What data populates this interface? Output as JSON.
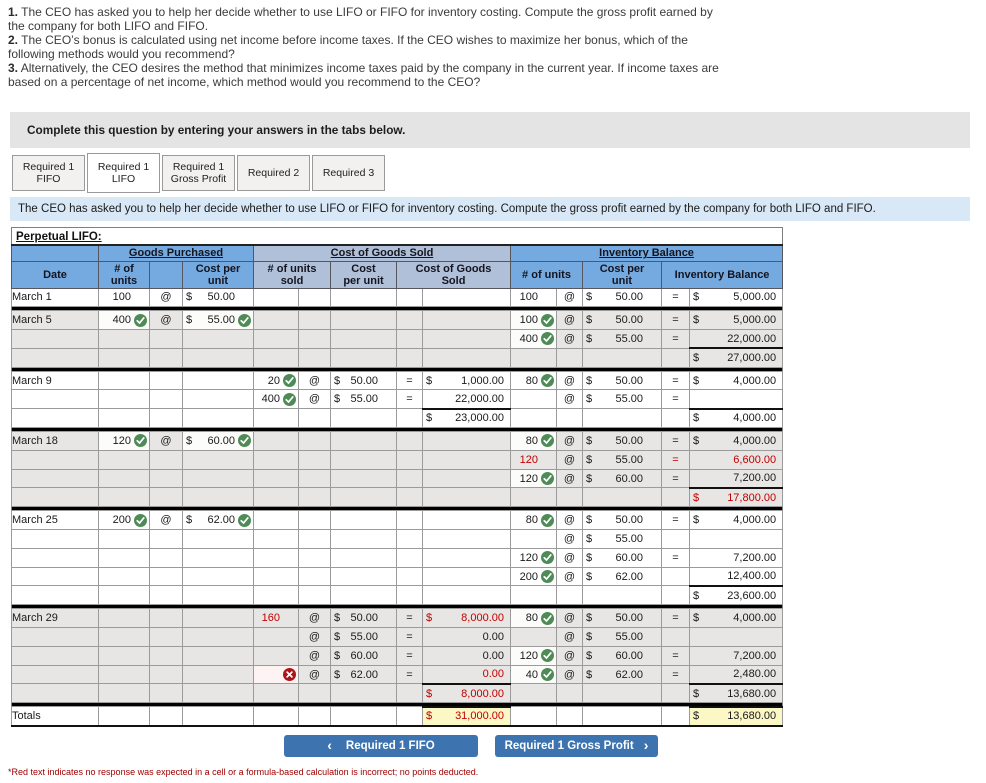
{
  "intro": {
    "items": [
      {
        "num": "1.",
        "text": " The CEO has asked you to help her decide whether to use LIFO or FIFO for inventory costing. Compute the gross profit earned by the company for both LIFO and FIFO."
      },
      {
        "num": "2.",
        "text": " The CEO’s bonus is calculated using net income before income taxes. If the CEO wishes to maximize her bonus, which of the following methods would you recommend?"
      },
      {
        "num": "3.",
        "text": " Alternatively, the CEO desires the method that minimizes income taxes paid by the company in the current year. If income taxes are based on a percentage of net income, which method would you recommend to the CEO?"
      }
    ]
  },
  "instruction": "Complete this question by entering your answers in the tabs below.",
  "tabs": [
    {
      "id": "required-1-fifo",
      "lines": [
        "Required 1",
        "FIFO"
      ],
      "active": false
    },
    {
      "id": "required-1-lifo",
      "lines": [
        "Required 1",
        "LIFO"
      ],
      "active": true
    },
    {
      "id": "required-1-gross-profit",
      "lines": [
        "Required 1",
        "Gross Profit"
      ],
      "active": false
    },
    {
      "id": "required-2",
      "lines": [
        "Required 2"
      ],
      "active": false
    },
    {
      "id": "required-3",
      "lines": [
        "Required 3"
      ],
      "active": false
    }
  ],
  "banner": "The CEO has asked you to help her decide whether to use LIFO or FIFO for inventory costing. Compute the gross profit earned by the company for both LIFO and FIFO.",
  "table": {
    "caption": "Perpetual LIFO:",
    "group_headers": [
      "Goods Purchased",
      "Cost of Goods Sold",
      "Inventory Balance"
    ],
    "col_headers": {
      "date": "Date",
      "gp_units": "# of\nunits",
      "gp_cost": "Cost per\nunit",
      "cs_units": "# of units\nsold",
      "cs_cost": "Cost\nper unit",
      "cs_total": "Cost of Goods\nSold",
      "inv_units": "# of units",
      "inv_cost": "Cost per\nunit",
      "inv_total": "Inventory Balance"
    },
    "icons": {
      "correct": "check-icon",
      "incorrect": "x-icon"
    },
    "colors": {
      "header_blue": "#74aadf",
      "header_gray_blue": "#b0c0d8",
      "row_gray": "#e7e6e4",
      "highlight_yellow": "#fbf8c6",
      "error_red": "#c00000",
      "check_green": "#4e8b57",
      "x_red": "#b11217",
      "button_blue": "#3d73ae"
    },
    "blocks": [
      {
        "shade": "white",
        "rows": [
          {
            "date": "March 1",
            "cells": {
              "gp_u": {
                "v": "100"
              },
              "gp_at": {
                "v": "@"
              },
              "gp_c": {
                "v": "50.00",
                "d": 1
              },
              "inv_u": {
                "v": "100"
              },
              "inv_at": {
                "v": "@"
              },
              "inv_c": {
                "v": "50.00",
                "d": 1
              },
              "inv_eq": {
                "v": "="
              },
              "inv_amt": {
                "v": "5,000.00",
                "d": 1
              }
            }
          }
        ]
      },
      {
        "shade": "gray",
        "rows": [
          {
            "date": "March 5",
            "cells": {
              "gp_u": {
                "v": "400",
                "i": "check",
                "w": 1,
                "in": 1
              },
              "gp_at": {
                "v": "@"
              },
              "gp_c": {
                "v": "55.00",
                "d": 1,
                "i": "check",
                "w": 1,
                "in": 1
              },
              "inv_u": {
                "v": "100",
                "i": "check",
                "w": 1,
                "in": 1
              },
              "inv_at": {
                "v": "@"
              },
              "inv_c": {
                "v": "50.00",
                "d": 1
              },
              "inv_eq": {
                "v": "="
              },
              "inv_amt": {
                "v": "5,000.00",
                "d": 1
              }
            }
          },
          {
            "date": "",
            "cells": {
              "inv_u": {
                "v": "400",
                "i": "check",
                "w": 1,
                "in": 1
              },
              "inv_at": {
                "v": "@"
              },
              "inv_c": {
                "v": "55.00",
                "d": 1
              },
              "inv_eq": {
                "v": "="
              },
              "inv_amt": {
                "v": "22,000.00"
              }
            }
          },
          {
            "date": "",
            "cells": {
              "inv_amt": {
                "v": "27,000.00",
                "d": 1,
                "s": 1
              }
            }
          }
        ]
      },
      {
        "shade": "white",
        "rows": [
          {
            "date": "March 9",
            "cells": {
              "cs_u": {
                "v": "20",
                "i": "check",
                "in": 1
              },
              "cs_at": {
                "v": "@"
              },
              "cs_c": {
                "v": "50.00",
                "d": 1
              },
              "cs_eq": {
                "v": "="
              },
              "cs_amt": {
                "v": "1,000.00",
                "d": 1
              },
              "inv_u": {
                "v": "80",
                "i": "check",
                "in": 1
              },
              "inv_at": {
                "v": "@"
              },
              "inv_c": {
                "v": "50.00",
                "d": 1
              },
              "inv_eq": {
                "v": "="
              },
              "inv_amt": {
                "v": "4,000.00",
                "d": 1
              }
            }
          },
          {
            "date": "",
            "cells": {
              "cs_u": {
                "v": "400",
                "i": "check",
                "in": 1
              },
              "cs_at": {
                "v": "@"
              },
              "cs_c": {
                "v": "55.00",
                "d": 1
              },
              "cs_eq": {
                "v": "="
              },
              "cs_amt": {
                "v": "22,000.00"
              },
              "inv_at": {
                "v": "@"
              },
              "inv_c": {
                "v": "55.00",
                "d": 1
              },
              "inv_eq": {
                "v": "="
              }
            }
          },
          {
            "date": "",
            "cells": {
              "cs_amt": {
                "v": "23,000.00",
                "d": 1,
                "s": 1
              },
              "inv_amt": {
                "v": "4,000.00",
                "d": 1,
                "s": 1
              }
            }
          }
        ]
      },
      {
        "shade": "gray",
        "rows": [
          {
            "date": "March 18",
            "cells": {
              "gp_u": {
                "v": "120",
                "i": "check",
                "w": 1,
                "in": 1
              },
              "gp_at": {
                "v": "@"
              },
              "gp_c": {
                "v": "60.00",
                "d": 1,
                "i": "check",
                "w": 1,
                "in": 1
              },
              "inv_u": {
                "v": "80",
                "i": "check",
                "w": 1,
                "in": 1
              },
              "inv_at": {
                "v": "@"
              },
              "inv_c": {
                "v": "50.00",
                "d": 1
              },
              "inv_eq": {
                "v": "="
              },
              "inv_amt": {
                "v": "4,000.00",
                "d": 1
              }
            }
          },
          {
            "date": "",
            "cells": {
              "inv_u": {
                "v": "120",
                "r": 1,
                "in": 1
              },
              "inv_at": {
                "v": "@"
              },
              "inv_c": {
                "v": "55.00",
                "d": 1
              },
              "inv_eq": {
                "v": "=",
                "r": 1
              },
              "inv_amt": {
                "v": "6,600.00",
                "r": 1
              }
            }
          },
          {
            "date": "",
            "cells": {
              "inv_u": {
                "v": "120",
                "i": "check",
                "w": 1,
                "in": 1
              },
              "inv_at": {
                "v": "@"
              },
              "inv_c": {
                "v": "60.00",
                "d": 1
              },
              "inv_eq": {
                "v": "="
              },
              "inv_amt": {
                "v": "7,200.00"
              }
            }
          },
          {
            "date": "",
            "cells": {
              "inv_amt": {
                "v": "17,800.00",
                "d": 1,
                "r": 1,
                "s": 1
              }
            }
          }
        ]
      },
      {
        "shade": "white",
        "rows": [
          {
            "date": "March 25",
            "cells": {
              "gp_u": {
                "v": "200",
                "i": "check",
                "in": 1
              },
              "gp_at": {
                "v": "@"
              },
              "gp_c": {
                "v": "62.00",
                "d": 1,
                "i": "check",
                "in": 1
              },
              "inv_u": {
                "v": "80",
                "i": "check",
                "in": 1
              },
              "inv_at": {
                "v": "@"
              },
              "inv_c": {
                "v": "50.00",
                "d": 1
              },
              "inv_eq": {
                "v": "="
              },
              "inv_amt": {
                "v": "4,000.00",
                "d": 1
              }
            }
          },
          {
            "date": "",
            "cells": {
              "inv_at": {
                "v": "@"
              },
              "inv_c": {
                "v": "55.00",
                "d": 1
              }
            }
          },
          {
            "date": "",
            "cells": {
              "inv_u": {
                "v": "120",
                "i": "check",
                "in": 1
              },
              "inv_at": {
                "v": "@"
              },
              "inv_c": {
                "v": "60.00",
                "d": 1
              },
              "inv_eq": {
                "v": "="
              },
              "inv_amt": {
                "v": "7,200.00"
              }
            }
          },
          {
            "date": "",
            "cells": {
              "inv_u": {
                "v": "200",
                "i": "check",
                "in": 1
              },
              "inv_at": {
                "v": "@"
              },
              "inv_c": {
                "v": "62.00",
                "d": 1
              },
              "inv_amt": {
                "v": "12,400.00"
              }
            }
          },
          {
            "date": "",
            "cells": {
              "inv_amt": {
                "v": "23,600.00",
                "d": 1,
                "s": 1
              }
            }
          }
        ]
      },
      {
        "shade": "gray",
        "rows": [
          {
            "date": "March 29",
            "cells": {
              "cs_u": {
                "v": "160",
                "r": 1,
                "in": 1
              },
              "cs_at": {
                "v": "@"
              },
              "cs_c": {
                "v": "50.00",
                "d": 1
              },
              "cs_eq": {
                "v": "="
              },
              "cs_amt": {
                "v": "8,000.00",
                "d": 1,
                "r": 1
              },
              "inv_u": {
                "v": "80",
                "i": "check",
                "w": 1,
                "in": 1
              },
              "inv_at": {
                "v": "@"
              },
              "inv_c": {
                "v": "50.00",
                "d": 1
              },
              "inv_eq": {
                "v": "="
              },
              "inv_amt": {
                "v": "4,000.00",
                "d": 1
              }
            }
          },
          {
            "date": "",
            "cells": {
              "cs_at": {
                "v": "@"
              },
              "cs_c": {
                "v": "55.00",
                "d": 1
              },
              "cs_eq": {
                "v": "="
              },
              "cs_amt": {
                "v": "0.00"
              },
              "inv_at": {
                "v": "@"
              },
              "inv_c": {
                "v": "55.00",
                "d": 1
              }
            }
          },
          {
            "date": "",
            "cells": {
              "cs_at": {
                "v": "@"
              },
              "cs_c": {
                "v": "60.00",
                "d": 1
              },
              "cs_eq": {
                "v": "="
              },
              "cs_amt": {
                "v": "0.00"
              },
              "inv_u": {
                "v": "120",
                "i": "check",
                "w": 1,
                "in": 1
              },
              "inv_at": {
                "v": "@"
              },
              "inv_c": {
                "v": "60.00",
                "d": 1
              },
              "inv_eq": {
                "v": "="
              },
              "inv_amt": {
                "v": "7,200.00"
              }
            }
          },
          {
            "date": "",
            "cells": {
              "cs_u": {
                "v": "",
                "i": "x",
                "p": 1,
                "in": 1
              },
              "cs_at": {
                "v": "@"
              },
              "cs_c": {
                "v": "62.00",
                "d": 1
              },
              "cs_eq": {
                "v": "="
              },
              "cs_amt": {
                "v": "0.00",
                "r": 1
              },
              "inv_u": {
                "v": "40",
                "i": "check",
                "w": 1,
                "in": 1
              },
              "inv_at": {
                "v": "@"
              },
              "inv_c": {
                "v": "62.00",
                "d": 1
              },
              "inv_eq": {
                "v": "="
              },
              "inv_amt": {
                "v": "2,480.00"
              }
            }
          },
          {
            "date": "",
            "cells": {
              "cs_amt": {
                "v": "8,000.00",
                "d": 1,
                "r": 1,
                "s": 1
              },
              "inv_amt": {
                "v": "13,680.00",
                "d": 1,
                "s": 1
              }
            }
          }
        ]
      },
      {
        "shade": "white",
        "rows": [
          {
            "date": "Totals",
            "cells": {
              "cs_amt": {
                "v": "31,000.00",
                "d": 1,
                "r": 1,
                "y": 1,
                "s": 1
              },
              "inv_amt": {
                "v": "13,680.00",
                "d": 1,
                "y": 1,
                "s": 1
              }
            }
          }
        ]
      }
    ]
  },
  "buttons": {
    "prev": "Required 1 FIFO",
    "prev_chevron": "‹",
    "next": "Required 1 Gross Profit",
    "next_chevron": "›"
  },
  "footnote": "*Red text indicates no response was expected in a cell or a formula-based calculation is incorrect; no points deducted."
}
